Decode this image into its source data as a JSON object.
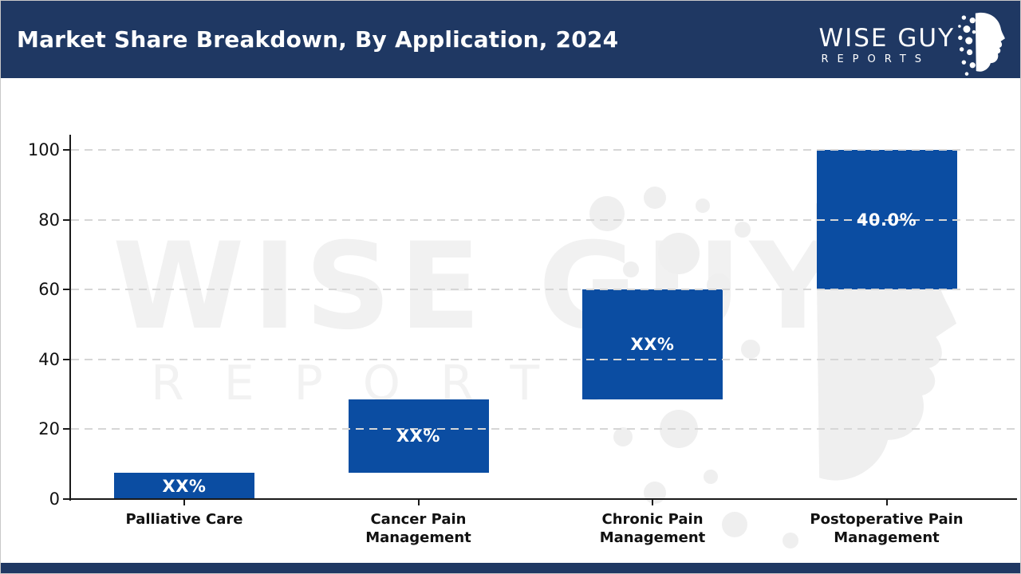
{
  "header": {
    "title": "Market Share Breakdown, By Application, 2024",
    "logo": {
      "name_line": "WISE GUY",
      "sub_line": "REPORTS"
    }
  },
  "watermark": {
    "name_line": "WISE GUY",
    "sub_line": "REPORTS"
  },
  "colors": {
    "header_bg": "#1f3863",
    "footer_bg": "#1f3863",
    "bar": "#0b4da2",
    "grid": "#d6d6d6",
    "axis": "#1a1a1a",
    "text": "#111111",
    "bar_label_text": "#ffffff",
    "watermark": "#f1f1f1"
  },
  "chart_data": {
    "type": "bar",
    "subtype": "floating-waterfall",
    "title": "Market Share Breakdown, By Application, 2024",
    "categories": [
      "Palliative Care",
      "Cancer Pain Management",
      "Chronic Pain Management",
      "Postoperative Pain Management"
    ],
    "category_lines": [
      [
        "Palliative Care"
      ],
      [
        "Cancer Pain",
        "Management"
      ],
      [
        "Chronic Pain",
        "Management"
      ],
      [
        "Postoperative Pain",
        "Management"
      ]
    ],
    "bars": [
      {
        "category": "Palliative Care",
        "start": 0,
        "end": 7.5,
        "label": "XX%"
      },
      {
        "category": "Cancer Pain Management",
        "start": 7.5,
        "end": 28.5,
        "label": "XX%"
      },
      {
        "category": "Chronic Pain Management",
        "start": 28.5,
        "end": 60,
        "label": "XX%"
      },
      {
        "category": "Postoperative Pain Management",
        "start": 60,
        "end": 100,
        "label": "40.0%"
      }
    ],
    "ylim": [
      0,
      100
    ],
    "yticks": [
      0,
      20,
      40,
      60,
      80,
      100
    ],
    "xlabel": "",
    "ylabel": "",
    "grid": "horizontal-dashed",
    "legend": "none",
    "bar_color": "#0b4da2"
  }
}
